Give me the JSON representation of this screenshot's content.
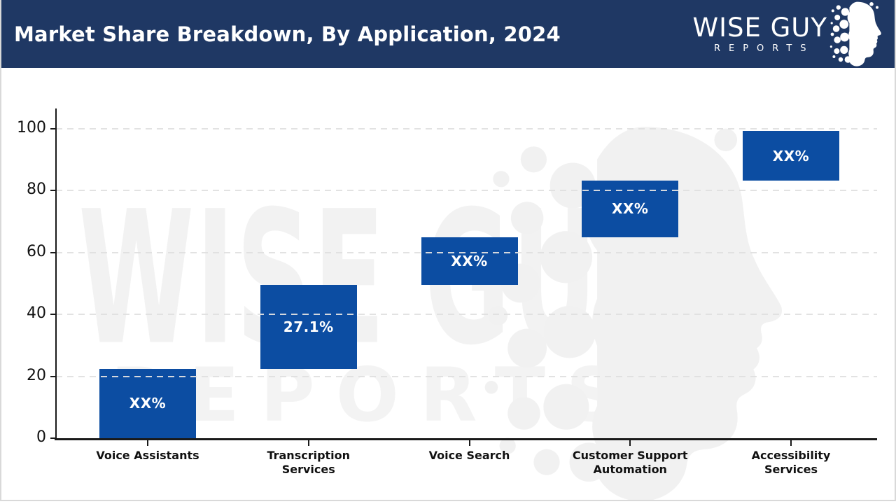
{
  "header": {
    "title": "Market Share Breakdown, By Application, 2024",
    "logo": {
      "line1": "WISE GUY",
      "line2": "REPORTS"
    }
  },
  "watermark": {
    "line1": "WISE GUY",
    "line2": "REPORTS"
  },
  "chart_data": {
    "type": "bar",
    "subtype": "waterfall",
    "title": "Market Share Breakdown, By Application, 2024",
    "xlabel": "",
    "ylabel": "",
    "categories": [
      "Voice Assistants",
      "Transcription Services",
      "Voice Search",
      "Customer Support Automation",
      "Accessibility Services"
    ],
    "category_label_lines": [
      [
        "Voice Assistants"
      ],
      [
        "Transcription",
        "Services"
      ],
      [
        "Voice Search"
      ],
      [
        "Customer Support",
        "Automation"
      ],
      [
        "Accessibility",
        "Services"
      ]
    ],
    "segments": [
      {
        "category": "Voice Assistants",
        "start": 0,
        "end": 22.5,
        "value_est": 22.5,
        "label": "XX%"
      },
      {
        "category": "Transcription Services",
        "start": 22.5,
        "end": 49.6,
        "value_est": 27.1,
        "label": "27.1%"
      },
      {
        "category": "Voice Search",
        "start": 49.6,
        "end": 65.0,
        "value_est": 15.4,
        "label": "XX%"
      },
      {
        "category": "Customer Support Automation",
        "start": 65.0,
        "end": 83.2,
        "value_est": 18.2,
        "label": "XX%"
      },
      {
        "category": "Accessibility Services",
        "start": 83.2,
        "end": 99.3,
        "value_est": 16.1,
        "label": "XX%"
      }
    ],
    "yticks": [
      0,
      20,
      40,
      60,
      80,
      100
    ],
    "ylim": [
      0,
      106
    ],
    "grid": "horizontal dashed",
    "legend": "none",
    "colors": {
      "bar": "#0C4DA2",
      "bar_label": "#FFFFFF",
      "header_bg": "#1F3864",
      "grid": "#E2E2E2",
      "axis": "#1A1A1A",
      "watermark": "#F2F2F2"
    }
  }
}
